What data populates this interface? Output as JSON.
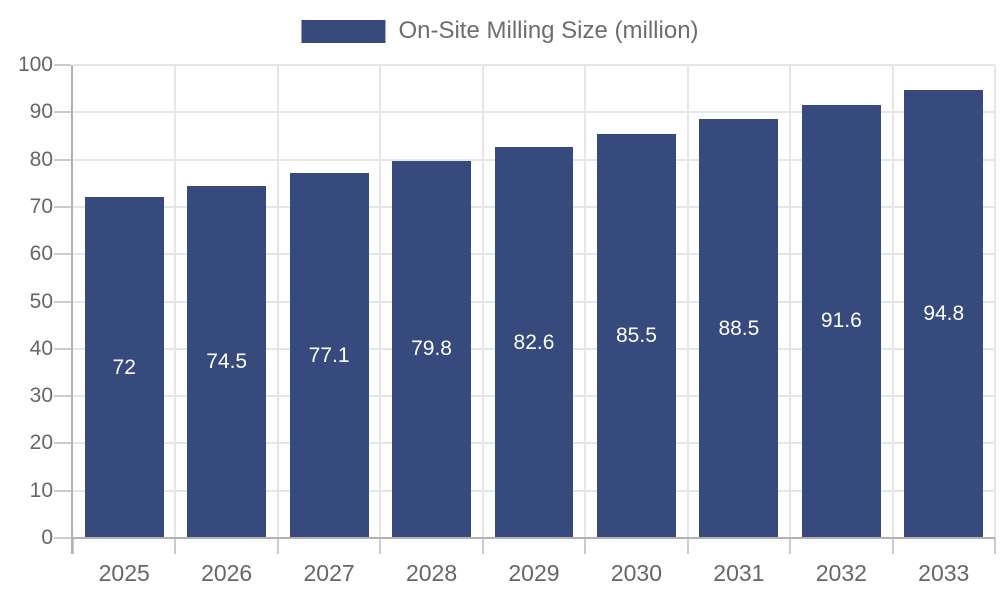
{
  "chart_data": {
    "type": "bar",
    "title": "On-Site Milling Size (million)",
    "legend": {
      "label": "On-Site Milling Size (million)",
      "position": "top-center"
    },
    "categories": [
      "2025",
      "2026",
      "2027",
      "2028",
      "2029",
      "2030",
      "2031",
      "2032",
      "2033"
    ],
    "series": [
      {
        "name": "On-Site Milling Size (million)",
        "values": [
          72,
          74.5,
          77.1,
          79.8,
          82.6,
          85.5,
          88.5,
          91.6,
          94.8
        ]
      }
    ],
    "value_labels": [
      "72",
      "74.5",
      "77.1",
      "79.8",
      "82.6",
      "85.5",
      "88.5",
      "91.6",
      "94.8"
    ],
    "xlabel": "",
    "ylabel": "",
    "ylim": [
      0,
      100
    ],
    "ytick_step": 10,
    "grid": true,
    "bar_width_frac": 0.77,
    "colors": {
      "bar": "#374a7e",
      "value_label_text": "#ffffff",
      "gridline": "#e6e6e6",
      "axis_line": "#b2b2b2",
      "tick": "#cccccc",
      "axis_label_text": "#666666",
      "legend_text": "#6d6d6d",
      "background": "#ffffff"
    }
  }
}
